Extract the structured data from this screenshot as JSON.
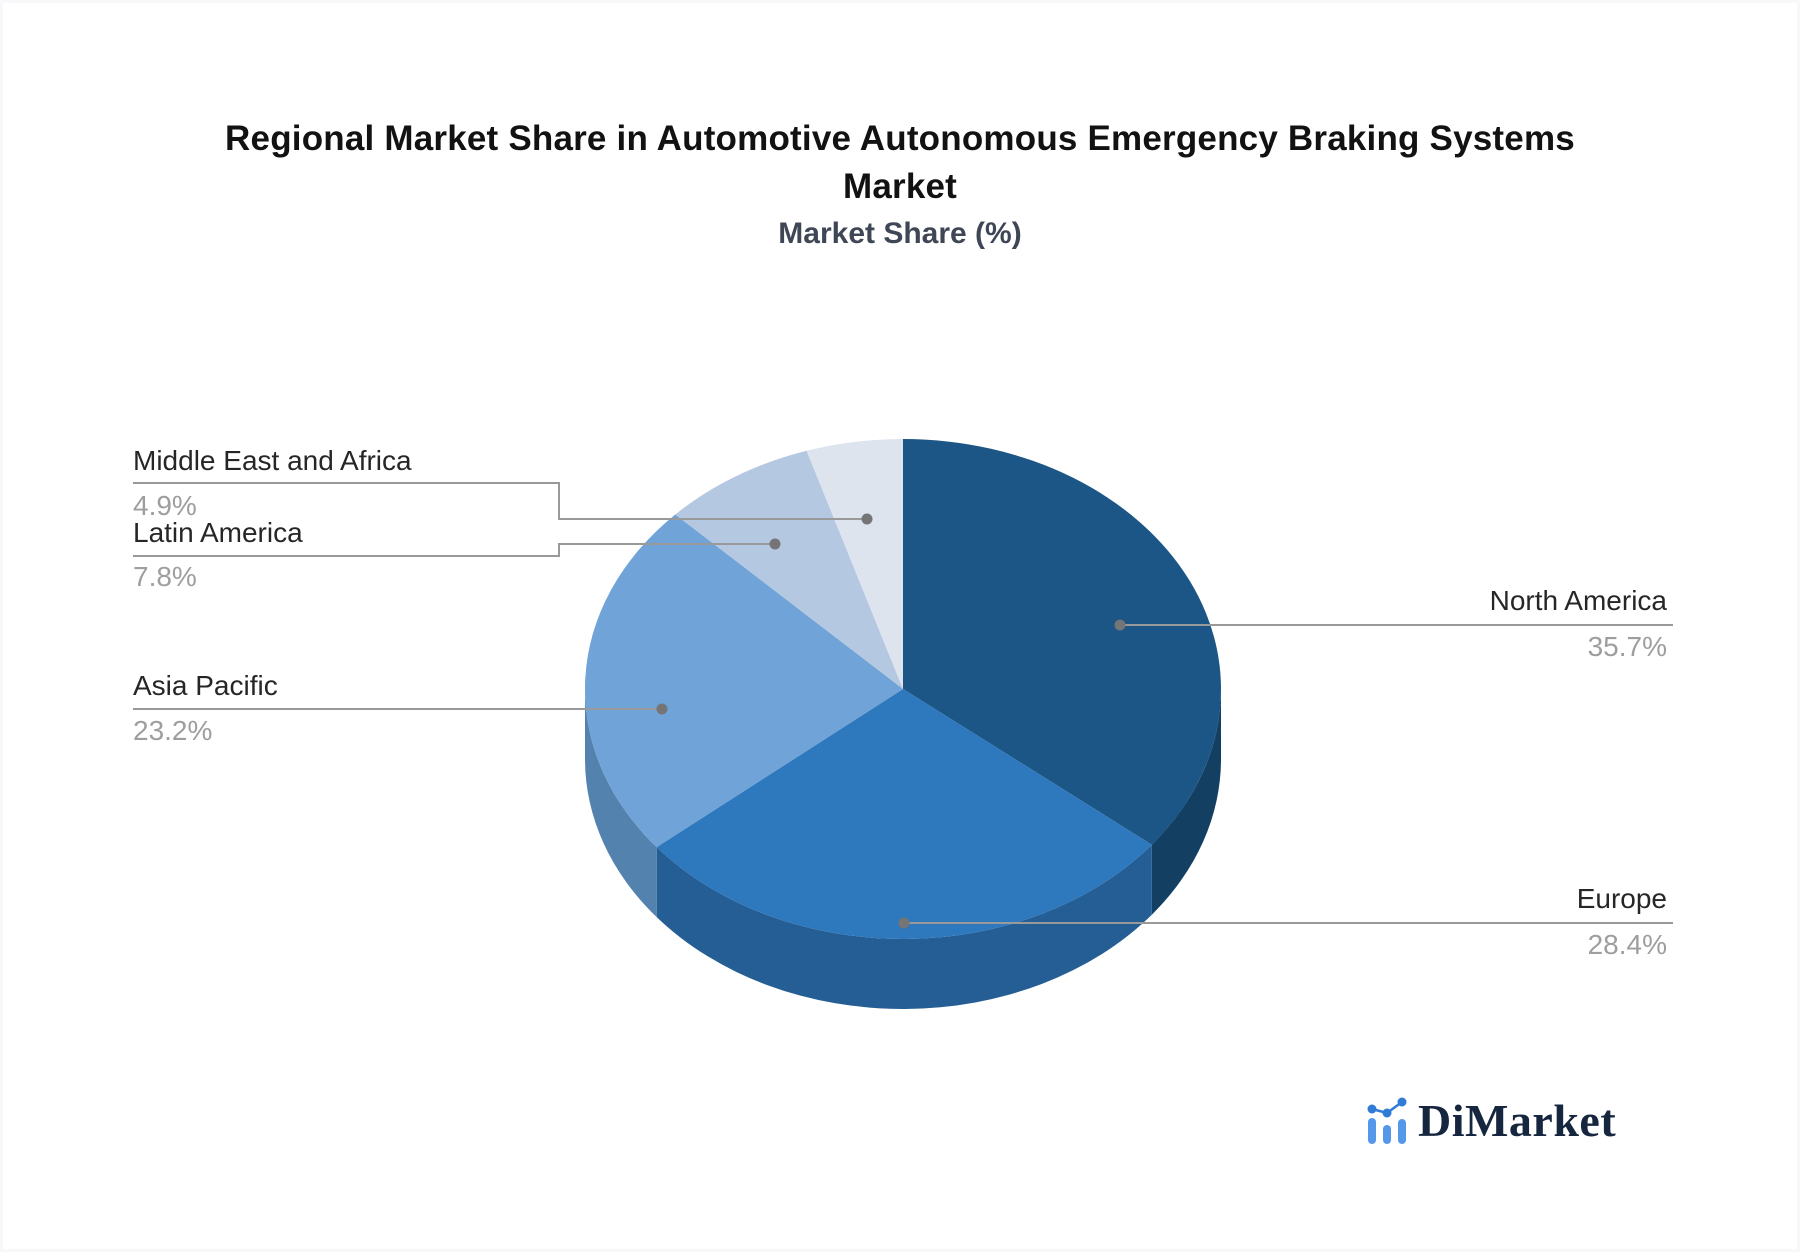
{
  "header": {
    "title": "Regional Market Share in Automotive Autonomous Emergency Braking Systems Market",
    "subtitle": "Market Share (%)"
  },
  "chart_data": {
    "type": "pie",
    "style": "3d",
    "title": "Regional Market Share in Automotive Autonomous Emergency Braking Systems Market",
    "subtitle": "Market Share (%)",
    "unit": "%",
    "start_angle_deg": 0,
    "direction": "clockwise",
    "legend_position": "none",
    "slices": [
      {
        "label": "North America",
        "value": 35.7,
        "display": "35.7%",
        "color": "#1c5687",
        "side_color": "#133f63",
        "label_side": "right"
      },
      {
        "label": "Europe",
        "value": 28.4,
        "display": "28.4%",
        "color": "#2e78bd",
        "side_color": "#245e94",
        "label_side": "right"
      },
      {
        "label": "Asia Pacific",
        "value": 23.2,
        "display": "23.2%",
        "color": "#70a3d7",
        "side_color": "#5482ae",
        "label_side": "left"
      },
      {
        "label": "Latin America",
        "value": 7.8,
        "display": "7.8%",
        "color": "#b4c9e1",
        "side_color": "#8fa9c4",
        "label_side": "left"
      },
      {
        "label": "Middle East and Africa",
        "value": 4.9,
        "display": "4.9%",
        "color": "#dde4ee",
        "side_color": "#b9c4d4",
        "label_side": "left"
      }
    ]
  },
  "branding": {
    "name": "DiMarket",
    "icon": "bar-line-chart-icon",
    "text_color": "#17263f",
    "icon_bar_color": "#5598ea",
    "icon_line_color": "#2e7cd6"
  },
  "colors": {
    "title": "#121212",
    "subtitle": "#3f4756",
    "label_text": "#262626",
    "value_text": "#9e9e9e",
    "leader_line": "#999999",
    "leader_dot": "#757575",
    "frame": "#f7f8fa",
    "background": "#ffffff"
  }
}
